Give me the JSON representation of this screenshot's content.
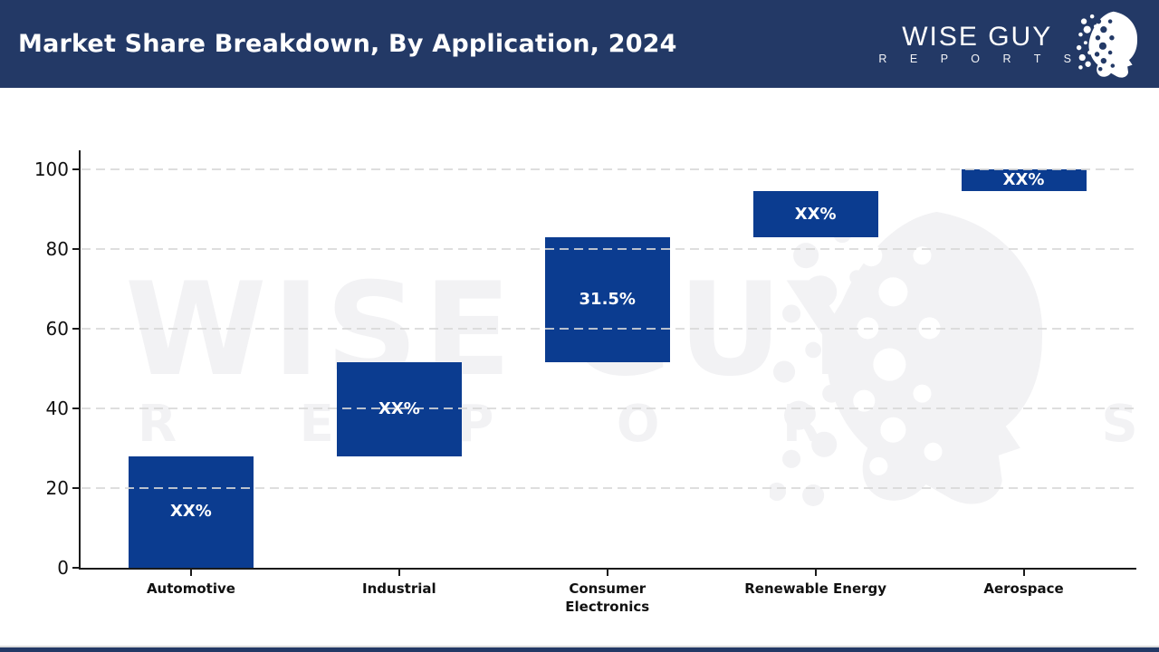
{
  "header": {
    "title": "Market Share Breakdown, By Application, 2024",
    "bg_color": "#233966",
    "logo": {
      "wordmark": "WISE GUY",
      "subtext": "R E P O R T S",
      "head_icon": "dotted-head-profile"
    }
  },
  "watermark": {
    "line1": "WISE GUY",
    "line2": "R E P O R T S"
  },
  "chart_data": {
    "type": "bar",
    "subtype": "floating-waterfall",
    "title": "Market Share Breakdown, By Application, 2024",
    "categories": [
      "Automotive",
      "Industrial",
      "Consumer Electronics",
      "Renewable Energy",
      "Aerospace"
    ],
    "series": [
      {
        "name": "Market share (%)",
        "base": [
          0,
          28,
          51.5,
          83,
          94.5
        ],
        "top": [
          28,
          51.5,
          83,
          94.5,
          100
        ],
        "values": [
          28,
          23.5,
          31.5,
          11.5,
          5.5
        ]
      }
    ],
    "bar_labels": [
      "XX%",
      "XX%",
      "31.5%",
      "XX%",
      "XX%"
    ],
    "ylim": [
      0,
      105
    ],
    "yticks": [
      0,
      20,
      40,
      60,
      80,
      100
    ],
    "grid": {
      "axis": "y",
      "style": "dashed",
      "color": "#d8d8d8"
    },
    "legend": "none",
    "bar_color": "#0b3c90",
    "label_color": "#ffffff",
    "axis_color": "#1a1a1a"
  }
}
